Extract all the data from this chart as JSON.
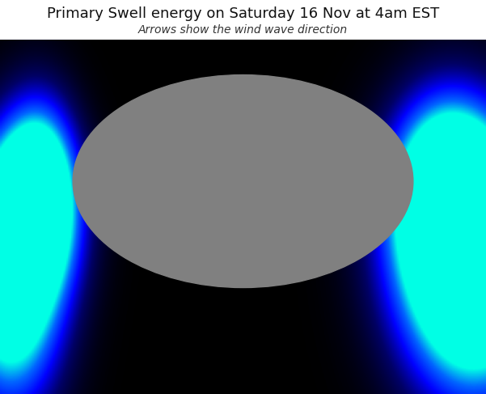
{
  "title": "Primary Swell energy on Saturday 16 Nov at 4am EST",
  "subtitle": "Arrows show the wind wave direction",
  "title_fontsize": 13,
  "subtitle_fontsize": 10,
  "fig_width": 6.01,
  "fig_height": 4.87,
  "dpi": 100,
  "title_bg_color": "#f0f0f0",
  "map_bg_color": "#000000",
  "land_color": "#888888",
  "ocean_deep_color": "#0000aa",
  "ocean_swell_color": "#0033ff",
  "arrow_color": "#00ffdd",
  "border_color": "#000000",
  "title_text_color": "#111111",
  "subtitle_text_color": "#333333"
}
